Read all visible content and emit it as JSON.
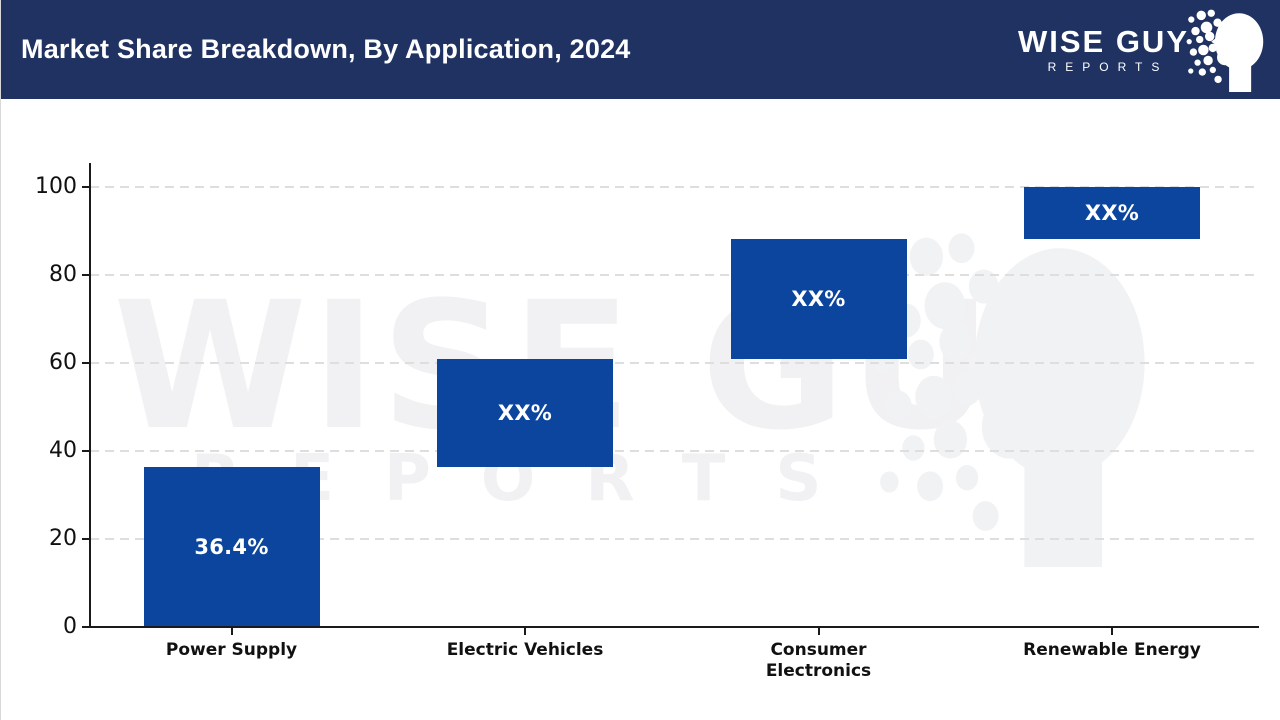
{
  "header": {
    "title": "Market Share Breakdown, By Application, 2024",
    "bg_color": "#1f3262",
    "logo": {
      "line1": "WISE GUY",
      "line2": "REPORTS"
    }
  },
  "watermark": {
    "line1": "WISE GUY",
    "line2": "REPORTS"
  },
  "chart_data": {
    "type": "bar",
    "subtype": "waterfall",
    "title": "Market Share Breakdown, By Application, 2024",
    "categories": [
      "Power Supply",
      "Electric Vehicles",
      "Consumer Electronics",
      "Renewable Energy"
    ],
    "segments": [
      {
        "category": "Power Supply",
        "start": 0,
        "end": 36.4,
        "label": "36.4%"
      },
      {
        "category": "Electric Vehicles",
        "start": 36.4,
        "end": 60.8,
        "label": "XX%"
      },
      {
        "category": "Consumer Electronics",
        "start": 60.8,
        "end": 88.2,
        "label": "XX%"
      },
      {
        "category": "Renewable Energy",
        "start": 88.2,
        "end": 100,
        "label": "XX%"
      }
    ],
    "yticks": [
      0,
      20,
      40,
      60,
      80,
      100
    ],
    "ylim": [
      0,
      105
    ],
    "xlabel": "",
    "ylabel": "",
    "bar_color": "#0b459e",
    "value_label_color": "#ffffff",
    "grid": "horizontal-dashed",
    "legend": "none"
  }
}
